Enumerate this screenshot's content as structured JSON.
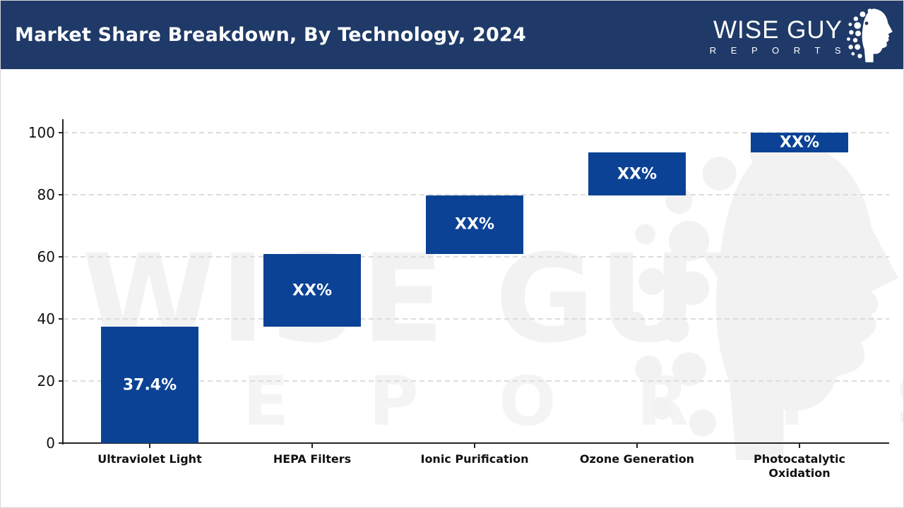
{
  "header": {
    "title": "Market Share Breakdown, By Technology, 2024",
    "logo": {
      "name": "WISE GUY",
      "sub": "R E P O R T S"
    }
  },
  "watermark": {
    "line1": "WISE GUY",
    "line2": "R E P O R T S"
  },
  "colors": {
    "header_bg": "#1f3a68",
    "bar": "#0b4295",
    "grid": "#dcdcdc",
    "axis": "#262626",
    "watermark": "#f2f2f2"
  },
  "chart_data": {
    "type": "bar",
    "subtype": "waterfall",
    "title": "Market Share Breakdown, By Technology, 2024",
    "xlabel": "",
    "ylabel": "",
    "ylim": [
      0,
      100
    ],
    "yticks": [
      0,
      20,
      40,
      60,
      80,
      100
    ],
    "grid": "horizontal-dashed",
    "legend": "none",
    "bar_color": "#0b4295",
    "value_label_color": "#ffffff",
    "categories": [
      "Ultraviolet Light",
      "HEPA Filters",
      "Ionic Purification",
      "Ozone Generation",
      "Photocatalytic Oxidation"
    ],
    "segments": [
      {
        "category": "Ultraviolet Light",
        "start": 0,
        "end": 37.4,
        "label": "37.4%"
      },
      {
        "category": "HEPA Filters",
        "start": 37.4,
        "end": 61.0,
        "label": "XX%"
      },
      {
        "category": "Ionic Purification",
        "start": 61.0,
        "end": 79.8,
        "label": "XX%"
      },
      {
        "category": "Ozone Generation",
        "start": 79.8,
        "end": 93.6,
        "label": "XX%"
      },
      {
        "category": "Photocatalytic Oxidation",
        "start": 93.6,
        "end": 100,
        "label": "XX%"
      }
    ]
  }
}
